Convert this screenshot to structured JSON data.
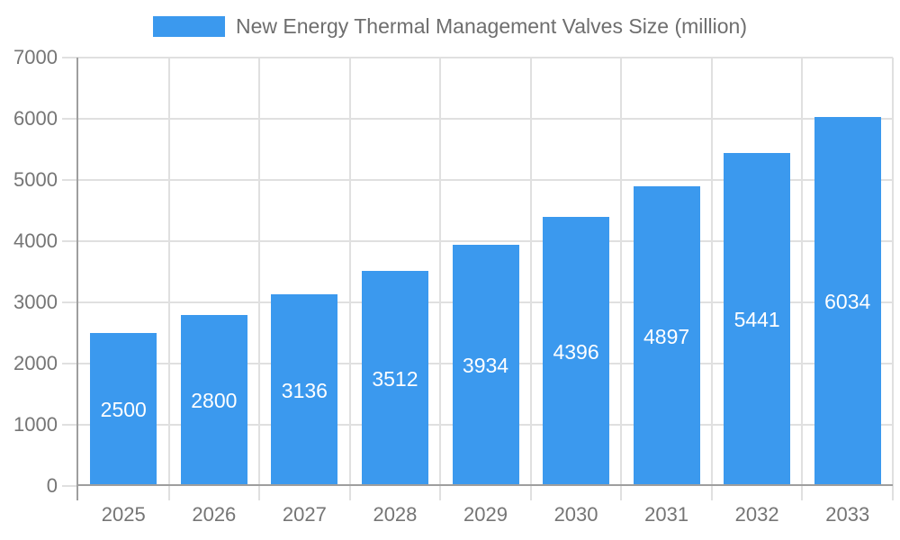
{
  "chart_data": {
    "type": "bar",
    "title": "New Energy Thermal Management Valves Size (million)",
    "legend_entries": [
      "New Energy Thermal Management Valves Size (million)"
    ],
    "legend_position": "top",
    "categories": [
      "2025",
      "2026",
      "2027",
      "2028",
      "2029",
      "2030",
      "2031",
      "2032",
      "2033"
    ],
    "values": [
      2500,
      2800,
      3136,
      3512,
      3934,
      4396,
      4897,
      5441,
      6034
    ],
    "bar_value_labels": [
      "2500",
      "2800",
      "3136",
      "3512",
      "3934",
      "4396",
      "4897",
      "5441",
      "6034"
    ],
    "xlabel": "",
    "ylabel": "",
    "ylim": [
      0,
      7000
    ],
    "yticks": [
      0,
      1000,
      2000,
      3000,
      4000,
      5000,
      6000,
      7000
    ],
    "ytick_labels": [
      "0",
      "1000",
      "2000",
      "3000",
      "4000",
      "5000",
      "6000",
      "7000"
    ],
    "grid": true,
    "colors": {
      "bar": "#3B99EE",
      "bar_label": "#FFFFFF",
      "axis_line": "#9E9E9E",
      "gridline": "#E0E0E0",
      "tick_label": "#757575",
      "legend_text": "#6E6E6E",
      "background": "#FFFFFF"
    }
  }
}
